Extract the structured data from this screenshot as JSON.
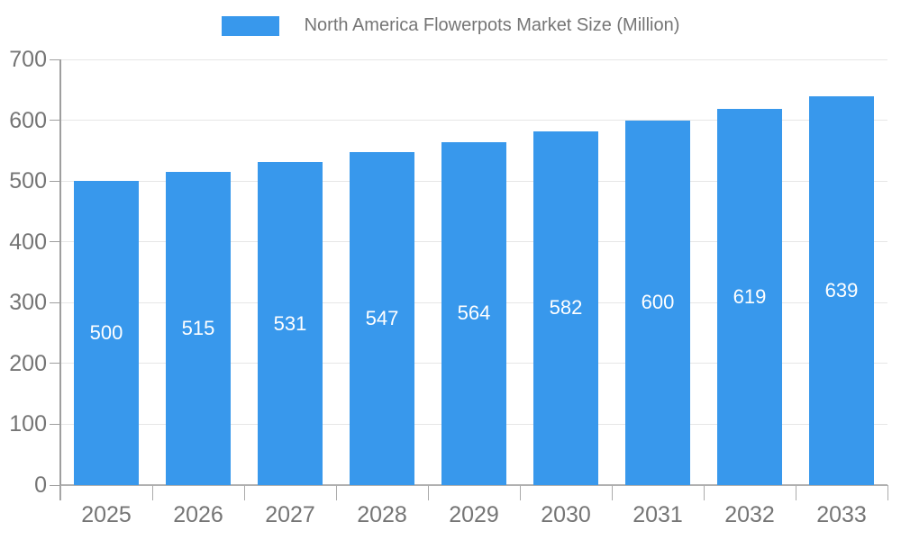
{
  "legend": {
    "label": "North America Flowerpots Market Size (Million)"
  },
  "colors": {
    "bar": "#3898EC",
    "bar_label_text": "#FFFFFF",
    "legend_text": "#757575",
    "axis_label_text": "#757575",
    "gridline": "#E6E6E6",
    "axis_line": "#9E9E9E",
    "background": "#FFFFFF"
  },
  "chart_data": {
    "type": "bar",
    "title": "North America Flowerpots Market Size (Million)",
    "series_name": "North America Flowerpots Market Size (Million)",
    "categories": [
      "2025",
      "2026",
      "2027",
      "2028",
      "2029",
      "2030",
      "2031",
      "2032",
      "2033"
    ],
    "values": [
      500,
      515,
      531,
      547,
      564,
      582,
      600,
      619,
      639
    ],
    "bar_value_labels": [
      "500",
      "515",
      "531",
      "547",
      "564",
      "582",
      "600",
      "619",
      "639"
    ],
    "xlabel": "",
    "ylabel": "",
    "ylim": [
      0,
      700
    ],
    "ytick_interval": 100,
    "ytick_labels": [
      "0",
      "100",
      "200",
      "300",
      "400",
      "500",
      "600",
      "700"
    ],
    "grid": true,
    "legend_position": "top-center",
    "bar_labels_visible": true
  }
}
